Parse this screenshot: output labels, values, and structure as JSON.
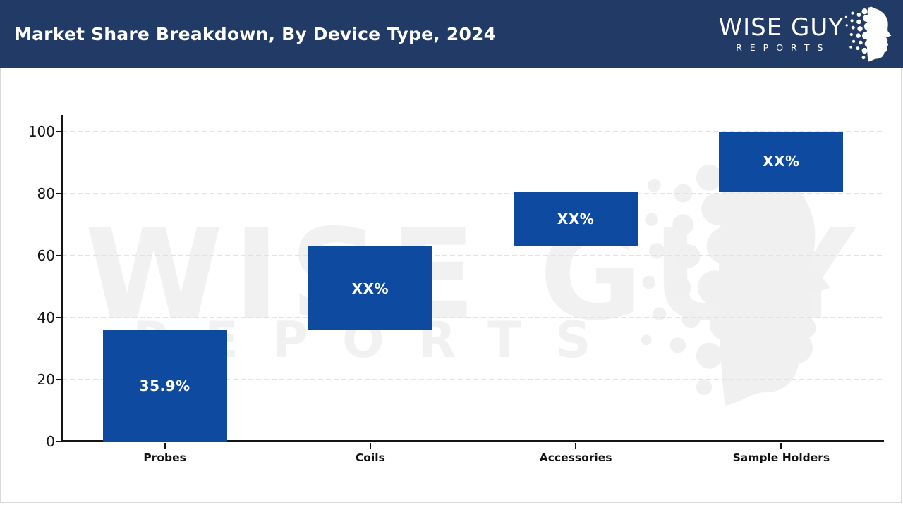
{
  "header": {
    "title": "Market Share Breakdown, By Device Type, 2024",
    "bg_color": "#213a66",
    "logo": {
      "name": "WISE GUY",
      "subtitle": "REPORTS"
    }
  },
  "watermark": {
    "line1": "WISE GUY",
    "line2": "REPORTS"
  },
  "chart_data": {
    "type": "bar",
    "subtype": "waterfall",
    "title": "Market Share Breakdown, By Device Type, 2024",
    "categories": [
      "Probes",
      "Coils",
      "Accessories",
      "Sample Holders"
    ],
    "series": [
      {
        "name": "Market share (%)",
        "segments": [
          {
            "category": "Probes",
            "start": 0,
            "end": 35.9,
            "label": "35.9%"
          },
          {
            "category": "Coils",
            "start": 35.9,
            "end": 62.9,
            "label": "XX%"
          },
          {
            "category": "Accessories",
            "start": 62.9,
            "end": 80.7,
            "label": "XX%"
          },
          {
            "category": "Sample Holders",
            "start": 80.7,
            "end": 100,
            "label": "XX%"
          }
        ]
      }
    ],
    "xlabel": "",
    "ylabel": "",
    "ylim": [
      0,
      105
    ],
    "yticks": [
      0,
      20,
      40,
      60,
      80,
      100
    ],
    "grid": "horizontal dashed",
    "legend": "none",
    "bar_color": "#0d4aa0",
    "bar_label_color": "#ffffff"
  }
}
